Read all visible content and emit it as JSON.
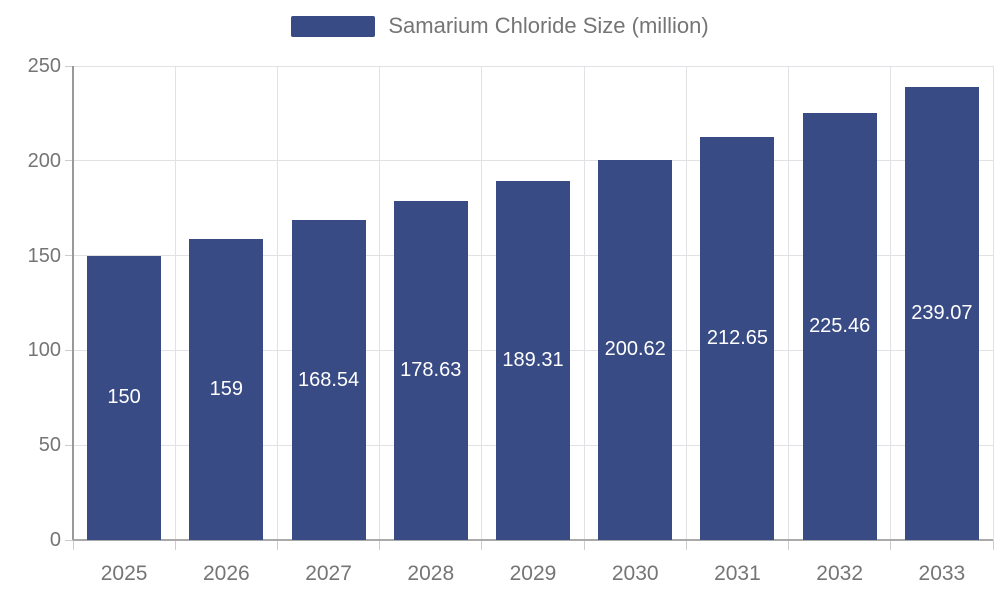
{
  "chart_data": {
    "type": "bar",
    "title": "Samarium Chloride Size (million)",
    "legend": [
      "Samarium Chloride Size (million)"
    ],
    "legend_position": "top",
    "categories": [
      "2025",
      "2026",
      "2027",
      "2028",
      "2029",
      "2030",
      "2031",
      "2032",
      "2033"
    ],
    "series": [
      {
        "name": "Samarium Chloride Size (million)",
        "values": [
          150,
          159,
          168.54,
          178.63,
          189.31,
          200.62,
          212.65,
          225.46,
          239.07
        ]
      }
    ],
    "value_labels_shown": true,
    "xlabel": "",
    "ylabel": "",
    "ylim": [
      0,
      250
    ],
    "yticks": [
      0,
      50,
      100,
      150,
      200,
      250
    ],
    "grid": true,
    "colors": {
      "bar": "#394B84",
      "value_label": "#FFFFFF",
      "axis_line_y": "#999999",
      "axis_line_x": "#AAAAAA",
      "grid_line": "#E1E1E6",
      "tick_line": "#CCCCCC",
      "label_text": "#757575"
    }
  }
}
